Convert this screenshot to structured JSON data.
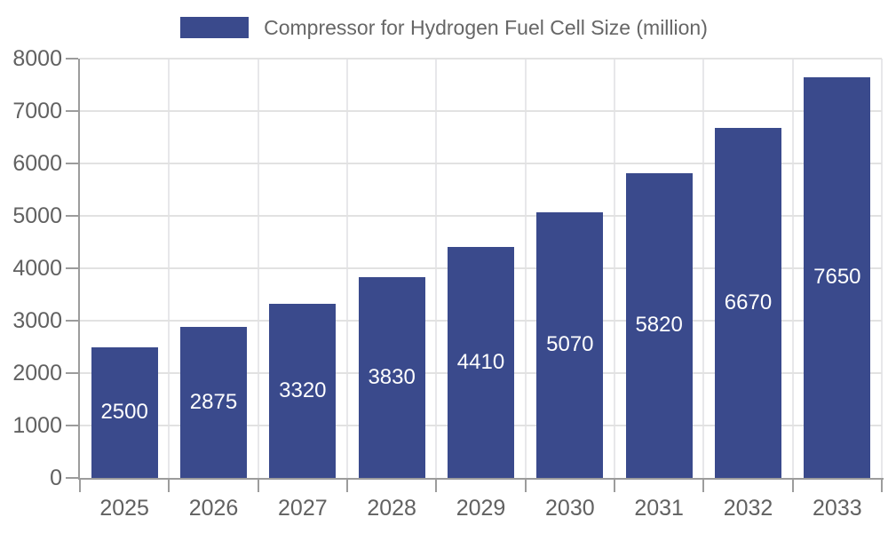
{
  "legend": {
    "label": "Compressor for Hydrogen Fuel Cell Size (million)"
  },
  "chart_data": {
    "type": "bar",
    "title": "Compressor for Hydrogen Fuel Cell Size (million)",
    "categories": [
      "2025",
      "2026",
      "2027",
      "2028",
      "2029",
      "2030",
      "2031",
      "2032",
      "2033"
    ],
    "values": [
      2500,
      2875,
      3320,
      3830,
      4410,
      5070,
      5820,
      6670,
      7650
    ],
    "series": [
      {
        "name": "Compressor for Hydrogen Fuel Cell Size (million)",
        "values": [
          2500,
          2875,
          3320,
          3830,
          4410,
          5070,
          5820,
          6670,
          7650
        ]
      }
    ],
    "xlabel": "",
    "ylabel": "",
    "ylim": [
      0,
      8000
    ],
    "yticks": [
      0,
      1000,
      2000,
      3000,
      4000,
      5000,
      6000,
      7000,
      8000
    ],
    "grid": true,
    "legend_position": "top",
    "value_labels_position": "inside-center",
    "colors": {
      "bar": "#3A4A8C",
      "bar_label": "#ffffff",
      "grid_h": "#e2e2e2",
      "grid_v": "#e7e7ea",
      "axis": "#9c9c9c",
      "tick_label": "#616161",
      "legend_text": "#666666",
      "background": "#ffffff"
    }
  }
}
